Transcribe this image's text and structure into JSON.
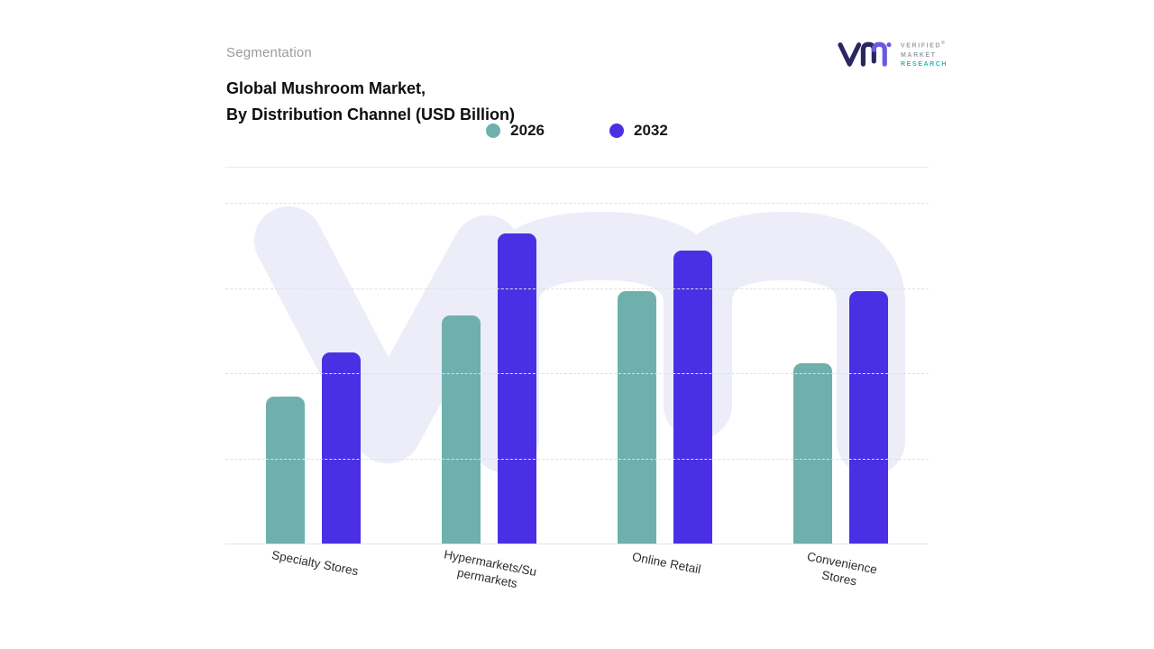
{
  "header": {
    "eyebrow": "Segmentation",
    "title_line1": "Global Mushroom Market,",
    "title_line2": "By Distribution Channel (USD Billion)"
  },
  "logo": {
    "mark": "vm-monogram",
    "line1": "VERIFIED",
    "registered": "®",
    "line2": "MARKET",
    "line3": "RESEARCH"
  },
  "chart_data": {
    "type": "bar",
    "title": "Global Mushroom Market, By Distribution Channel (USD Billion)",
    "categories": [
      "Specialty Stores",
      "Hypermarkets/Supermarkets",
      "Online Retail",
      "Convenience Stores"
    ],
    "display_labels": [
      [
        "Specialty Stores"
      ],
      [
        "Hypermarkets/Su",
        "permarkets"
      ],
      [
        "Online Retail"
      ],
      [
        "Convenience",
        "Stores"
      ]
    ],
    "series": [
      {
        "name": "2026",
        "color": "#6fb0ad",
        "values": [
          43,
          67,
          74,
          53
        ]
      },
      {
        "name": "2032",
        "color": "#4a2fe5",
        "values": [
          56,
          91,
          86,
          74
        ]
      }
    ],
    "ylim": [
      0,
      100
    ],
    "xlabel": "",
    "ylabel": "",
    "grid": "horizontal-dashed",
    "legend_position": "top-center",
    "note": "No numeric y-axis shown in source; values are relative bar heights as % of plot height"
  },
  "watermark": {
    "text": "vm",
    "color": "#ecedf9"
  }
}
